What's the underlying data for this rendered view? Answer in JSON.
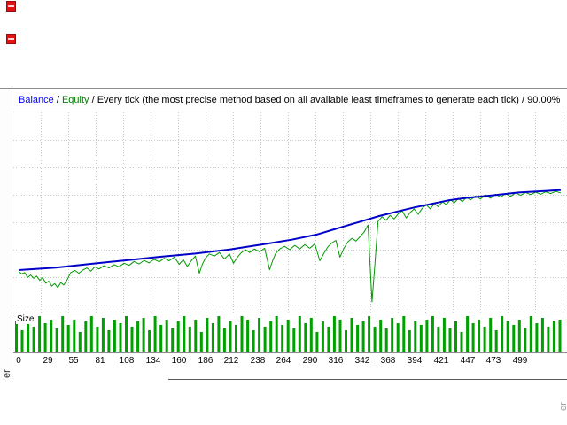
{
  "panel_tabs": {
    "left_vertical_text": "er",
    "right_vertical_text": "er"
  },
  "header": {
    "balance_label": "Balance",
    "separator": " / ",
    "equity_label": "Equity",
    "method_text": "Every tick (the most precise method based on all available least timeframes to generate each tick)",
    "quality_text": "90.00%"
  },
  "colors": {
    "balance_line": "#0000c8",
    "equity_line": "#009900",
    "size_bars": "#00a000",
    "grid": "#c9c9c9",
    "panel_border": "#8c8c8c",
    "header_balance": "#0000ff",
    "header_equity": "#008000",
    "icon_red": "#e31212"
  },
  "chart_data": {
    "type": "line",
    "title": "Balance / Equity / Every tick (the most precise method based on all available least timeframes to generate each tick) / 90.00%",
    "xlabel": "",
    "ylabel": "",
    "grid": true,
    "legend_position": "header",
    "x_tick_labels": [
      "0",
      "29",
      "55",
      "81",
      "108",
      "134",
      "160",
      "186",
      "212",
      "238",
      "264",
      "290",
      "316",
      "342",
      "368",
      "394",
      "421",
      "447",
      "473",
      "499"
    ],
    "x_range": [
      0,
      540
    ],
    "ylim": [
      9800,
      15400
    ],
    "series": [
      {
        "name": "Balance",
        "color": "#0000c8",
        "width": 2,
        "x": [
          0,
          37,
          71,
          106,
          141,
          176,
          211,
          246,
          272,
          298,
          324,
          341,
          359,
          376,
          394,
          411,
          428,
          446,
          472,
          498,
          524,
          540
        ],
        "y": [
          10990,
          11060,
          11160,
          11260,
          11360,
          11450,
          11570,
          11720,
          11840,
          11990,
          12210,
          12350,
          12500,
          12620,
          12740,
          12840,
          12940,
          13010,
          13080,
          13160,
          13200,
          13230
        ]
      },
      {
        "name": "Equity",
        "color": "#009900",
        "width": 1,
        "x": [
          0,
          3,
          6,
          9,
          12,
          15,
          18,
          21,
          24,
          27,
          30,
          33,
          36,
          39,
          42,
          45,
          48,
          52,
          56,
          60,
          64,
          68,
          72,
          76,
          80,
          85,
          90,
          95,
          100,
          105,
          110,
          115,
          120,
          125,
          130,
          135,
          140,
          145,
          150,
          155,
          160,
          164,
          168,
          172,
          176,
          180,
          183,
          186,
          190,
          195,
          200,
          205,
          210,
          214,
          218,
          222,
          226,
          230,
          235,
          240,
          245,
          250,
          253,
          256,
          260,
          265,
          270,
          275,
          280,
          285,
          290,
          295,
          300,
          304,
          308,
          312,
          316,
          320,
          324,
          328,
          332,
          336,
          340,
          344,
          348,
          352,
          355,
          358,
          362,
          366,
          370,
          374,
          378,
          382,
          386,
          390,
          394,
          398,
          402,
          406,
          410,
          414,
          418,
          422,
          426,
          430,
          434,
          438,
          442,
          446,
          450,
          455,
          460,
          465,
          470,
          475,
          480,
          485,
          490,
          495,
          500,
          505,
          510,
          515,
          520,
          525,
          530,
          535,
          540
        ],
        "y": [
          10950,
          10880,
          10920,
          10780,
          10850,
          10760,
          10820,
          10700,
          10780,
          10620,
          10680,
          10540,
          10610,
          10500,
          10640,
          10570,
          10700,
          10920,
          10980,
          10900,
          10990,
          11050,
          10960,
          11080,
          11020,
          11110,
          11050,
          11140,
          11080,
          11180,
          11120,
          11230,
          11160,
          11260,
          11190,
          11290,
          11220,
          11320,
          11250,
          11350,
          11150,
          11280,
          11090,
          11250,
          11380,
          10900,
          11150,
          11320,
          11440,
          11380,
          11480,
          11300,
          11440,
          11180,
          11350,
          11480,
          11560,
          11480,
          11580,
          11500,
          11600,
          11000,
          11250,
          11450,
          11580,
          11650,
          11560,
          11680,
          11580,
          11700,
          11600,
          11720,
          11250,
          11450,
          11640,
          11750,
          11820,
          11350,
          11600,
          11780,
          11880,
          11800,
          11920,
          12050,
          12250,
          10100,
          11200,
          12350,
          12480,
          12380,
          12520,
          12420,
          12560,
          12650,
          12450,
          12600,
          12700,
          12550,
          12720,
          12820,
          12700,
          12850,
          12760,
          12900,
          12820,
          12960,
          12870,
          13000,
          12900,
          13030,
          12950,
          13060,
          12980,
          13090,
          13000,
          13110,
          13030,
          13130,
          13050,
          13150,
          13080,
          13160,
          13100,
          13170,
          13110,
          13180,
          13130,
          13190,
          13150
        ]
      }
    ],
    "size_panel": {
      "label": "Size",
      "bar_color": "#00a000",
      "values": [
        0.85,
        0.6,
        0.95,
        0.7,
        1,
        0.8,
        0.9,
        0.65,
        1,
        0.75,
        0.9,
        0.55,
        0.85,
        1,
        0.7,
        0.95,
        0.6,
        0.9,
        0.8,
        1,
        0.7,
        0.85,
        0.95,
        0.6,
        1,
        0.75,
        0.9,
        0.65,
        0.85,
        1,
        0.7,
        0.9,
        0.55,
        0.95,
        0.8,
        1,
        0.65,
        0.85,
        0.75,
        1,
        0.9,
        0.6,
        0.95,
        0.7,
        0.85,
        1,
        0.75,
        0.9,
        0.65,
        1,
        0.8,
        0.95,
        0.55,
        0.85,
        0.7,
        1,
        0.9,
        0.6,
        0.95,
        0.75,
        0.85,
        1,
        0.7,
        0.9,
        0.65,
        0.95,
        0.8,
        1,
        0.6,
        0.85,
        0.75,
        0.9,
        1,
        0.7,
        0.95,
        0.65,
        0.85,
        0.55,
        1,
        0.8,
        0.9,
        0.7,
        0.95,
        0.6,
        1,
        0.85,
        0.75,
        0.9,
        0.65,
        1,
        0.8,
        0.95,
        0.7,
        0.85,
        0.9
      ]
    }
  }
}
